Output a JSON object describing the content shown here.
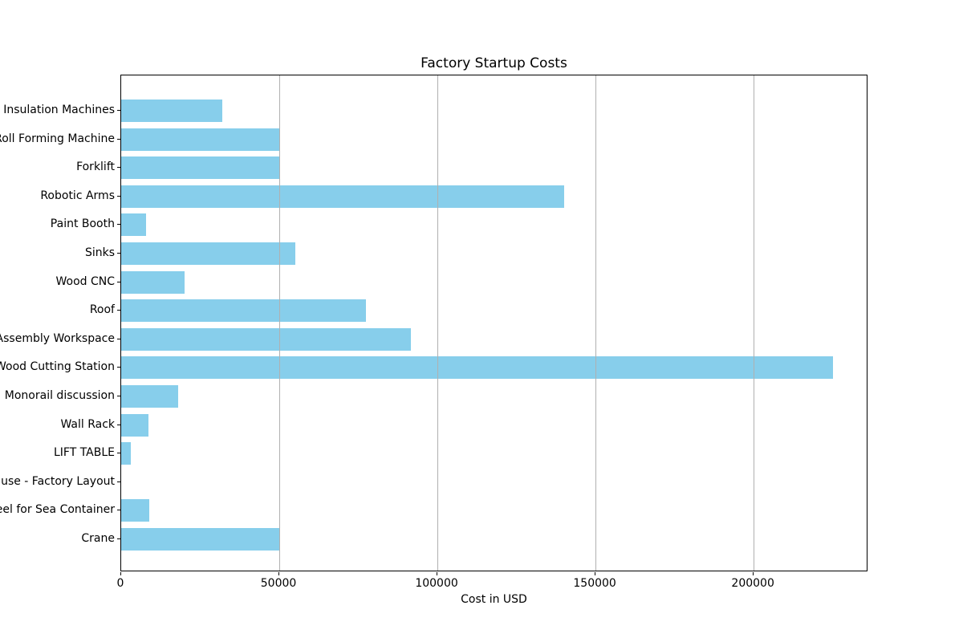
{
  "chart_data": {
    "type": "bar",
    "orientation": "horizontal",
    "title": "Factory Startup Costs",
    "xlabel": "Cost in USD",
    "ylabel": "",
    "categories": [
      "Insulation Machines",
      "Roll Forming Machine",
      "Forklift",
      "Robotic Arms",
      "Paint Booth",
      "Sinks",
      "Wood CNC",
      "Roof",
      "Assembly Workspace",
      "Wood Cutting Station",
      "Monorail discussion",
      "Wall Rack",
      "LIFT TABLE",
      "use - Factory Layout",
      "eel for Sea Container",
      "Crane"
    ],
    "values": [
      32000,
      50000,
      50000,
      140000,
      7800,
      55000,
      20000,
      77500,
      91700,
      225000,
      18000,
      8700,
      3000,
      0,
      8900,
      50000
    ],
    "x_ticks": [
      0,
      50000,
      100000,
      150000,
      200000
    ],
    "x_tick_labels": [
      "0",
      "50000",
      "100000",
      "150000",
      "200000"
    ],
    "xlim": [
      0,
      236250
    ],
    "grid": "vertical gridlines at x ticks, drawn over bars",
    "legend_position": "none",
    "colors": {
      "bar": "#87CEEB",
      "grid": "#B0B0B0",
      "spine": "#000000",
      "text": "#000000",
      "background": "#FFFFFF"
    }
  }
}
